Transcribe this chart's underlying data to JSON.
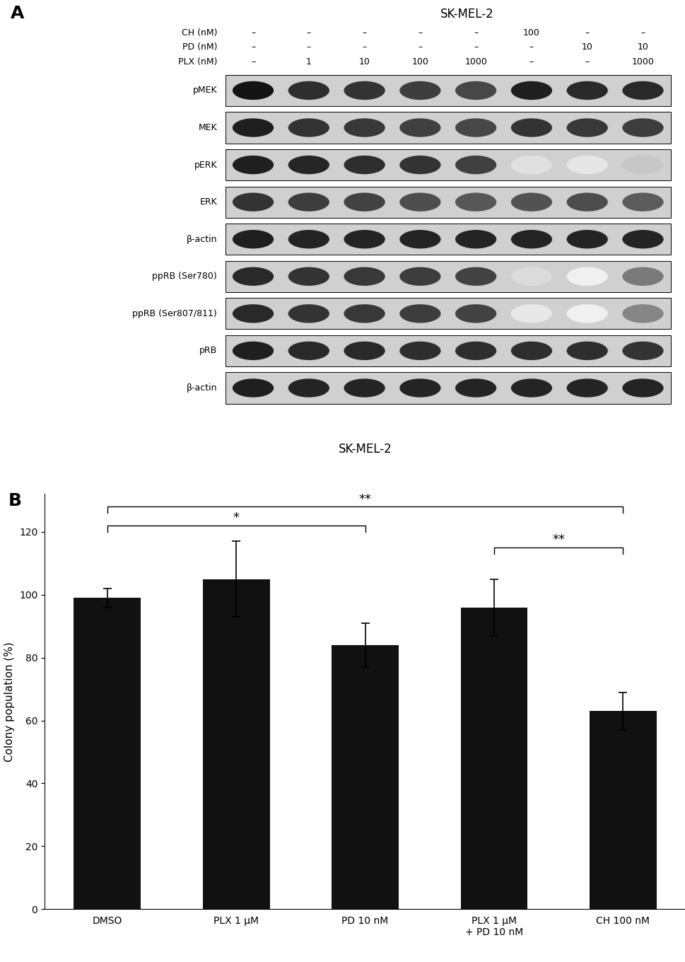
{
  "panel_A_label": "A",
  "panel_B_label": "B",
  "title_A": "SK-MEL-2",
  "title_B": "SK-MEL-2",
  "CH_row": [
    "–",
    "–",
    "–",
    "–",
    "–",
    "100",
    "–",
    "–"
  ],
  "PD_row": [
    "–",
    "–",
    "–",
    "–",
    "–",
    "–",
    "10",
    "10"
  ],
  "PLX_row": [
    "–",
    "1",
    "10",
    "100",
    "1000",
    "–",
    "–",
    "1000"
  ],
  "blot_labels": [
    "pMEK",
    "MEK",
    "pERK",
    "ERK",
    "β-actin",
    "ppRB (Ser780)",
    "ppRB (Ser807/811)",
    "pRB",
    "β-actin"
  ],
  "band_patterns": [
    [
      0.92,
      0.82,
      0.8,
      0.76,
      0.72,
      0.88,
      0.84,
      0.84
    ],
    [
      0.88,
      0.8,
      0.78,
      0.75,
      0.72,
      0.8,
      0.78,
      0.76
    ],
    [
      0.88,
      0.85,
      0.82,
      0.8,
      0.75,
      0.12,
      0.1,
      0.22
    ],
    [
      0.8,
      0.76,
      0.74,
      0.7,
      0.66,
      0.68,
      0.7,
      0.64
    ],
    [
      0.88,
      0.86,
      0.86,
      0.86,
      0.86,
      0.86,
      0.86,
      0.86
    ],
    [
      0.84,
      0.8,
      0.78,
      0.76,
      0.74,
      0.14,
      0.06,
      0.52
    ],
    [
      0.84,
      0.8,
      0.78,
      0.76,
      0.74,
      0.09,
      0.06,
      0.48
    ],
    [
      0.88,
      0.84,
      0.84,
      0.82,
      0.82,
      0.82,
      0.82,
      0.8
    ],
    [
      0.88,
      0.86,
      0.86,
      0.86,
      0.86,
      0.86,
      0.86,
      0.86
    ]
  ],
  "bar_categories": [
    "DMSO",
    "PLX 1 μM",
    "PD 10 nM",
    "PLX 1 μM\n+ PD 10 nM",
    "CH 100 nM"
  ],
  "bar_values": [
    99,
    105,
    84,
    96,
    63
  ],
  "bar_errors": [
    3,
    12,
    7,
    9,
    6
  ],
  "bar_color": "#111111",
  "ylabel_B": "Colony population (%)",
  "ylim_B": [
    0,
    132
  ],
  "yticks_B": [
    0,
    20,
    40,
    60,
    80,
    100,
    120
  ],
  "background_color": "#ffffff"
}
